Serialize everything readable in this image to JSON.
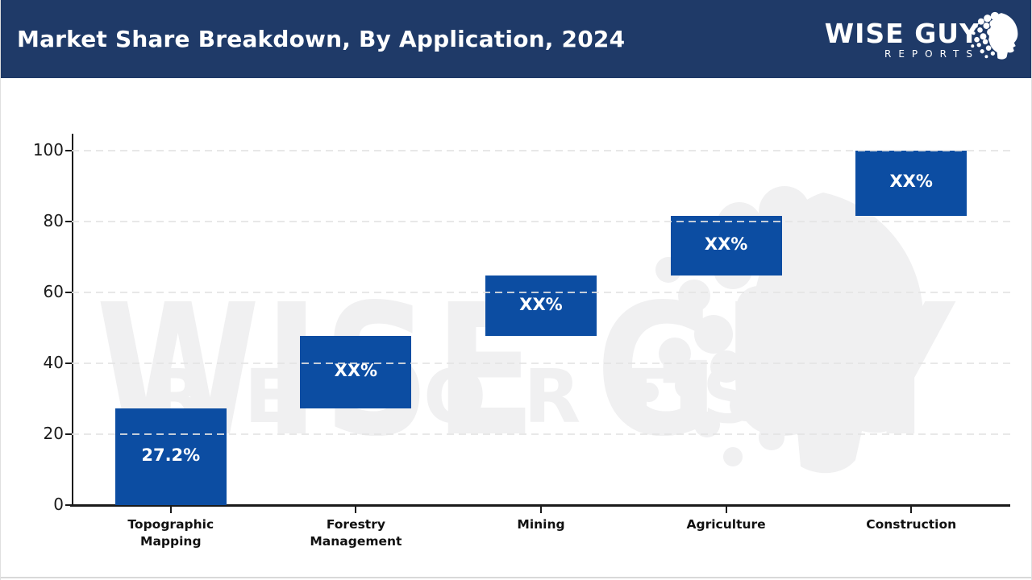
{
  "header": {
    "title": "Market Share Breakdown, By Application, 2024",
    "logo": {
      "line1": "WISE GUY",
      "line2": "REPORTS"
    }
  },
  "watermark": {
    "line1": "WISE GUY",
    "line2": "REPORTS"
  },
  "colors": {
    "header_bg": "#1f3a68",
    "bar": "#0c4da2",
    "bar_label": "#ffffff",
    "axis": "#1a1a1a",
    "grid": "#e4e4e4",
    "watermark": "#f0f0f1"
  },
  "chart_data": {
    "type": "bar",
    "subtype": "waterfall",
    "title": "Market Share Breakdown, By Application, 2024",
    "categories": [
      "Topographic Mapping",
      "Forestry Management",
      "Mining",
      "Agriculture",
      "Construction"
    ],
    "series": [
      {
        "name": "Market share (%)",
        "segments": [
          {
            "category": "Topographic Mapping",
            "start": 0,
            "end": 27.2,
            "label": "27.2%"
          },
          {
            "category": "Forestry Management",
            "start": 27.2,
            "end": 47.7,
            "label": "XX%"
          },
          {
            "category": "Mining",
            "start": 47.7,
            "end": 64.8,
            "label": "XX%"
          },
          {
            "category": "Agriculture",
            "start": 64.8,
            "end": 81.6,
            "label": "XX%"
          },
          {
            "category": "Construction",
            "start": 81.6,
            "end": 100,
            "label": "XX%"
          }
        ]
      }
    ],
    "ylim": [
      0,
      100
    ],
    "yticks": [
      0,
      20,
      40,
      60,
      80,
      100
    ],
    "grid": "horizontal-dashed",
    "legend": "none",
    "xlabel": "",
    "ylabel": ""
  }
}
